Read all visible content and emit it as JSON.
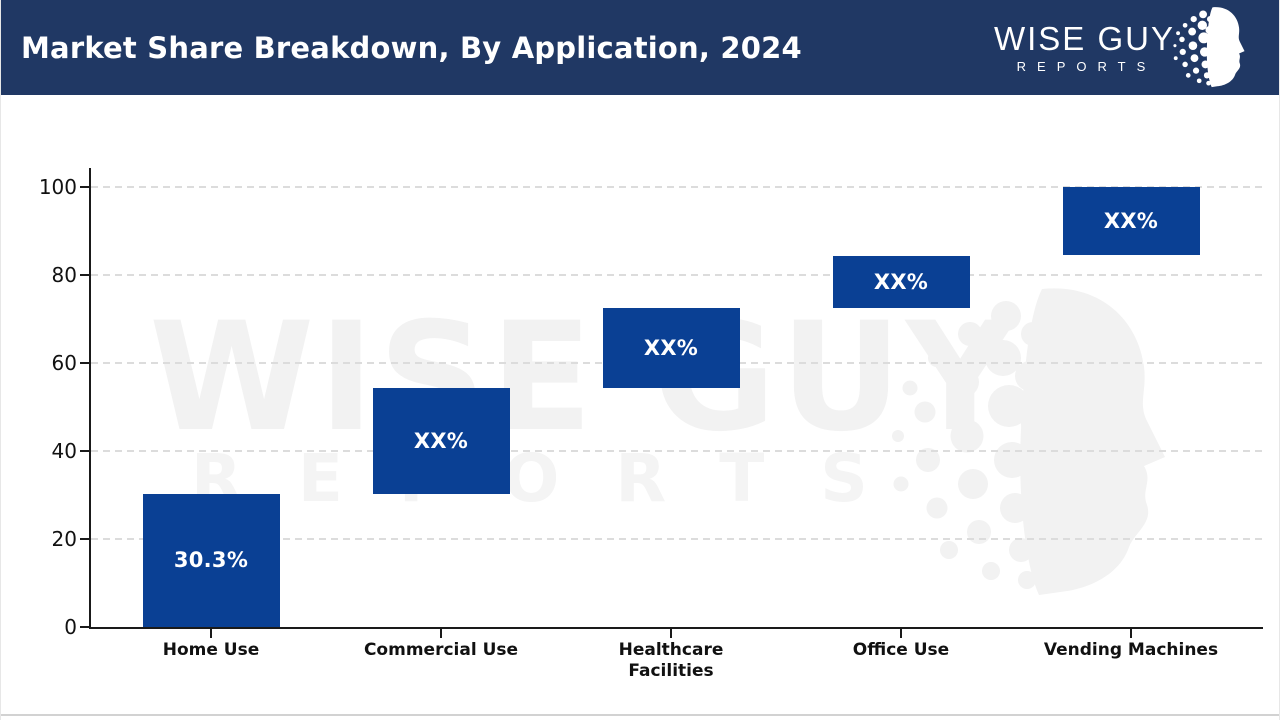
{
  "header": {
    "title": "Market Share Breakdown, By Application, 2024",
    "bg_color": "#203864",
    "logo": {
      "line1": "WISE GUY",
      "line2": "REPORTS",
      "head_icon": "dotted-face-profile"
    }
  },
  "watermark": {
    "line1": "WISE GUY",
    "line2": "REPORTS",
    "head_icon": "dotted-face-profile"
  },
  "chart_data": {
    "type": "bar",
    "subtype": "waterfall-floating-bars",
    "title": "Market Share Breakdown, By Application, 2024",
    "categories": [
      "Home Use",
      "Commercial Use",
      "Healthcare Facilities",
      "Office Use",
      "Vending Machines"
    ],
    "category_label_lines": [
      [
        "Home Use"
      ],
      [
        "Commercial Use"
      ],
      [
        "Healthcare",
        "Facilities"
      ],
      [
        "Office Use"
      ],
      [
        "Vending Machines"
      ]
    ],
    "segments": [
      {
        "category": "Home Use",
        "start": 0,
        "end": 30.3,
        "label": "30.3%"
      },
      {
        "category": "Commercial Use",
        "start": 30.3,
        "end": 54.3,
        "label": "XX%"
      },
      {
        "category": "Healthcare Facilities",
        "start": 54.4,
        "end": 72.4,
        "label": "XX%"
      },
      {
        "category": "Office Use",
        "start": 72.4,
        "end": 84.4,
        "label": "XX%"
      },
      {
        "category": "Vending Machines",
        "start": 84.5,
        "end": 100,
        "label": "XX%"
      }
    ],
    "xlabel": "",
    "ylabel": "",
    "yticks": [
      0,
      20,
      40,
      60,
      80,
      100
    ],
    "ylim": [
      0,
      104
    ],
    "grid": "horizontal-dashed",
    "legend": "none",
    "bar_color": "#0a4094",
    "bar_label_color": "#ffffff",
    "axis_color": "#1a1a1a",
    "grid_color": "#dcdcdc"
  },
  "colors": {
    "header_bg": "#203864",
    "page_bg": "#ffffff",
    "watermark": "#f2f2f2",
    "bottom_rule": "#d2d2d2"
  }
}
